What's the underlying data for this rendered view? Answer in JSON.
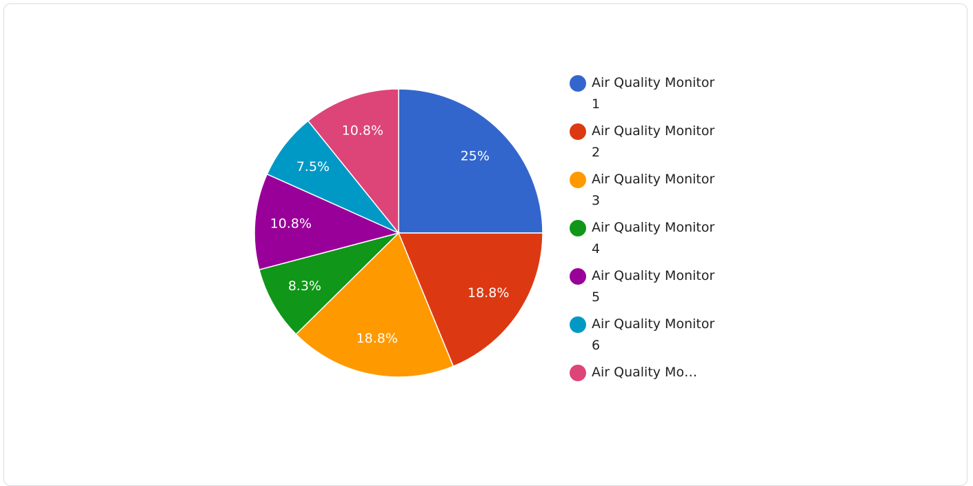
{
  "chart_data": {
    "type": "pie",
    "categories": [
      "Air Quality Monitor 1",
      "Air Quality Monitor 2",
      "Air Quality Monitor 3",
      "Air Quality Monitor 4",
      "Air Quality Monitor 5",
      "Air Quality Monitor 6",
      "Air Quality Mo…"
    ],
    "values": [
      25,
      18.8,
      18.8,
      8.3,
      10.8,
      7.5,
      10.8
    ],
    "value_labels": [
      "25%",
      "18.8%",
      "18.8%",
      "8.3%",
      "10.8%",
      "7.5%",
      "10.8%"
    ],
    "colors": [
      "#3366cc",
      "#dc3912",
      "#ff9900",
      "#109618",
      "#990099",
      "#0099c6",
      "#dd4477"
    ],
    "legend": "right"
  }
}
